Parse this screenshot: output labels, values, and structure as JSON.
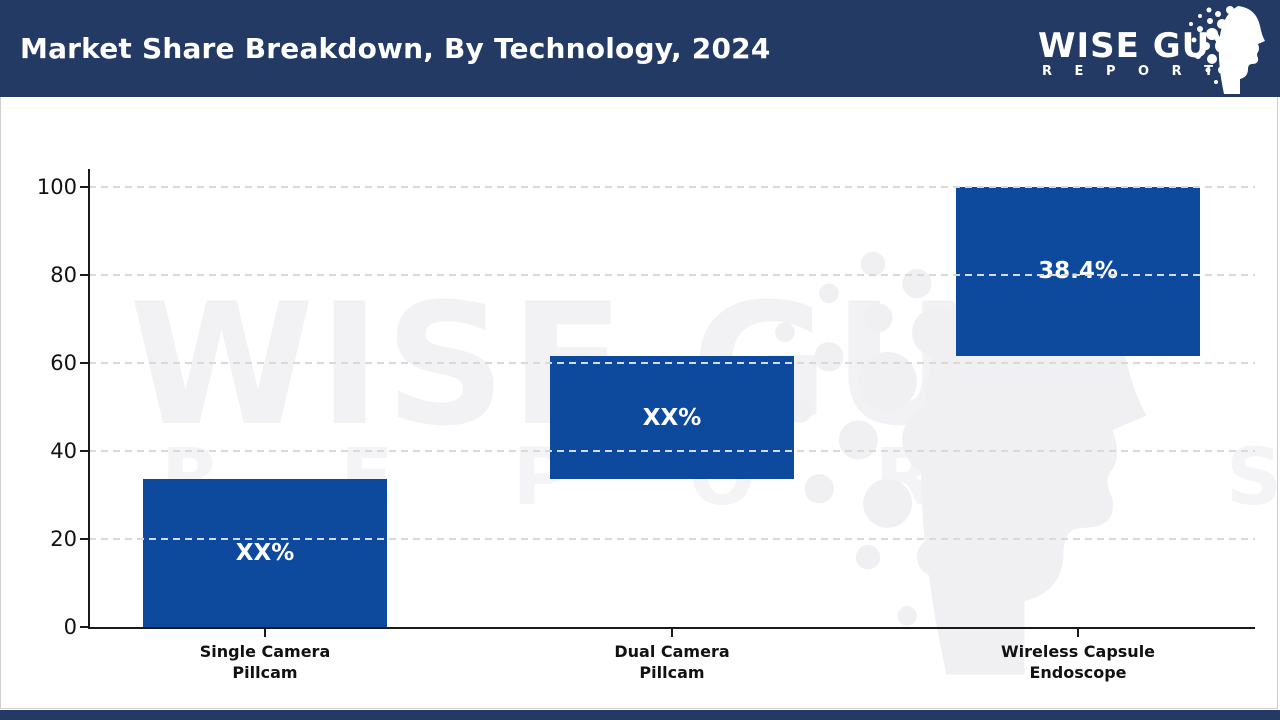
{
  "header": {
    "title": "Market Share Breakdown, By Technology, 2024",
    "logo_line1": "WISE GUY",
    "logo_line2": "R E P O R T S",
    "bg_color": "#223a64"
  },
  "watermark": {
    "line1": "WISE GUY",
    "line2": "R E P O R T S"
  },
  "chart_data": {
    "type": "bar",
    "subtype": "floating-waterfall",
    "title": "Market Share Breakdown, By Technology, 2024",
    "categories": [
      "Single Camera\nPillcam",
      "Dual Camera\nPillcam",
      "Wireless Capsule\nEndoscope"
    ],
    "bars": [
      {
        "category": "Single Camera\nPillcam",
        "base": 0,
        "top": 33.6,
        "label": "XX%"
      },
      {
        "category": "Dual Camera\nPillcam",
        "base": 33.6,
        "top": 61.6,
        "label": "XX%"
      },
      {
        "category": "Wireless Capsule\nEndoscope",
        "base": 61.6,
        "top": 100,
        "label": "38.4%"
      }
    ],
    "yticks": [
      0,
      20,
      40,
      60,
      80,
      100
    ],
    "ylim": [
      0,
      100
    ],
    "xlabel": "",
    "ylabel": "",
    "bar_color": "#0d4a9e",
    "grid": "horizontal-dashed",
    "legend": "none"
  }
}
